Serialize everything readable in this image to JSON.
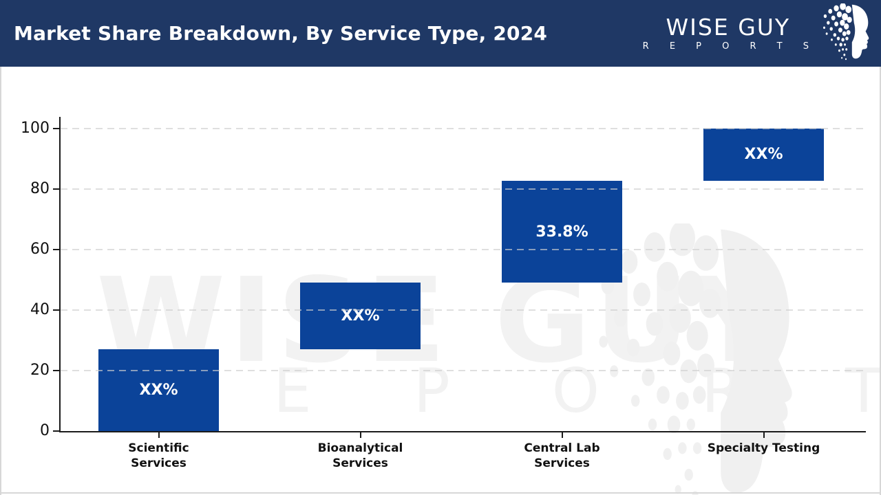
{
  "header": {
    "title": "Market Share Breakdown, By Service Type, 2024",
    "logo": {
      "name_top": "WISE GUY",
      "name_bottom": "R E P O R T S"
    },
    "bg_color": "#1F3865",
    "text_color": "#FFFFFF"
  },
  "watermark": {
    "big_text": "WISE GUY",
    "small_text": "R E P O R T S"
  },
  "chart_data": {
    "type": "bar",
    "subtype": "floating-waterfall",
    "title": "Market Share Breakdown, By Service Type, 2024",
    "categories": [
      "Scientific\nServices",
      "Bioanalytical\nServices",
      "Central Lab\nServices",
      "Specialty Testing"
    ],
    "segments": [
      {
        "category": "Scientific Services",
        "start": 0,
        "end": 27,
        "label": "XX%"
      },
      {
        "category": "Bioanalytical Services",
        "start": 27,
        "end": 49,
        "label": "XX%"
      },
      {
        "category": "Central Lab Services",
        "start": 49,
        "end": 82.8,
        "label": "33.8%"
      },
      {
        "category": "Specialty Testing",
        "start": 82.8,
        "end": 100,
        "label": "XX%"
      }
    ],
    "ylim": [
      0,
      100
    ],
    "yticks": [
      0,
      20,
      40,
      60,
      80,
      100
    ],
    "grid": "horizontal-dashed",
    "legend": "none",
    "bar_color": "#0B4399",
    "bar_label_color": "#FFFFFF",
    "axis_color": "#1A1A1A"
  }
}
